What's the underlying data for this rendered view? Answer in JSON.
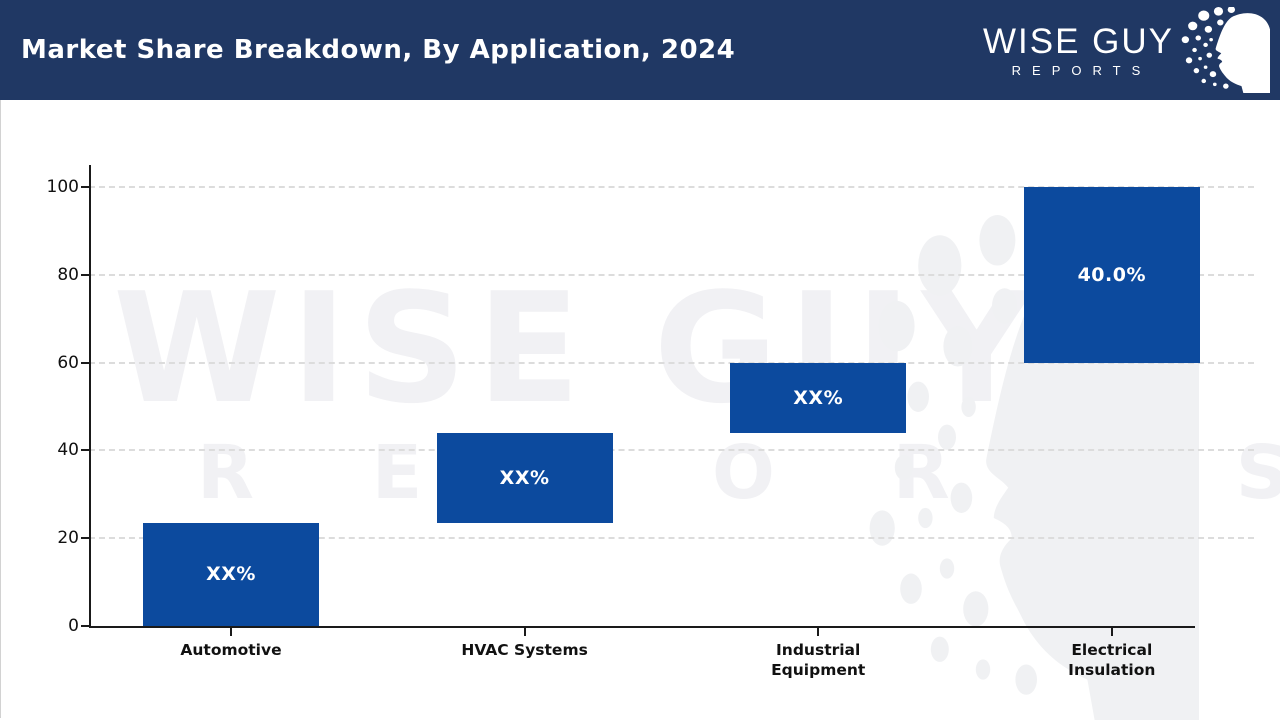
{
  "header": {
    "title": "Market Share Breakdown, By Application, 2024",
    "logo": {
      "line1": "WISE GUY",
      "line2": "REPORTS"
    }
  },
  "watermark": {
    "line1": "WISE GUY",
    "line2": "R E P O R T S"
  },
  "colors": {
    "header_bg": "#203864",
    "bar_blue": "#0c4a9e",
    "bar_label": "#ffffff",
    "gridline": "#dcdcdc",
    "axis": "#1a1a1a",
    "watermark": "#f1f1f4"
  },
  "chart_data": {
    "type": "bar",
    "subtype": "waterfall-floating-segments",
    "title": "Market Share Breakdown, By Application, 2024",
    "categories": [
      "Automotive",
      "HVAC Systems",
      "Industrial Equipment",
      "Electrical Insulation"
    ],
    "segments": [
      {
        "category": "Automotive",
        "start": 0,
        "end": 23.5,
        "size": 23.5,
        "label": "XX%"
      },
      {
        "category": "HVAC Systems",
        "start": 23.5,
        "end": 44,
        "size": 20.5,
        "label": "XX%"
      },
      {
        "category": "Industrial Equipment",
        "start": 44,
        "end": 60,
        "size": 16,
        "label": "XX%"
      },
      {
        "category": "Electrical Insulation",
        "start": 60,
        "end": 100,
        "size": 40,
        "label": "40.0%"
      }
    ],
    "xlabel": "",
    "ylabel": "",
    "ylim": [
      0,
      100
    ],
    "yticks": [
      0,
      20,
      40,
      60,
      80,
      100
    ],
    "grid": "horizontal-dashed",
    "legend": "none",
    "bar_color": "#0c4a9e"
  }
}
